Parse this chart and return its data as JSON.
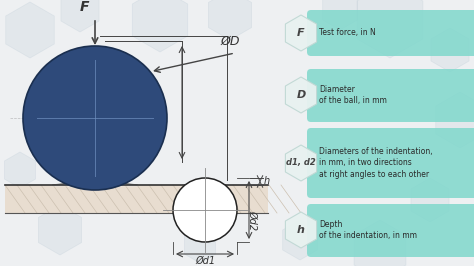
{
  "bg_color": "#eef0f2",
  "ball_color": "#2e4a7a",
  "ball_edge_color": "#1a2f50",
  "surface_color": "#e8ddd0",
  "surface_hatch_color": "#ccc0b0",
  "teal_color": "#80d8cc",
  "hex_badge_color": "#ddeeed",
  "hex_bg_color": "#d8dfe8",
  "text_dark": "#333333",
  "arrow_color": "#444444",
  "crosshair_color": "#7090c0",
  "legend_items": [
    {
      "symbol": "F",
      "text": "Test force, in N"
    },
    {
      "symbol": "D",
      "text": "Diameter\nof the ball, in mm"
    },
    {
      "symbol": "d1, d2",
      "text": "Diameters of the indentation,\nin mm, in two directions\nat right angles to each other"
    },
    {
      "symbol": "h",
      "text": "Depth\nof the indentation, in mm"
    }
  ]
}
